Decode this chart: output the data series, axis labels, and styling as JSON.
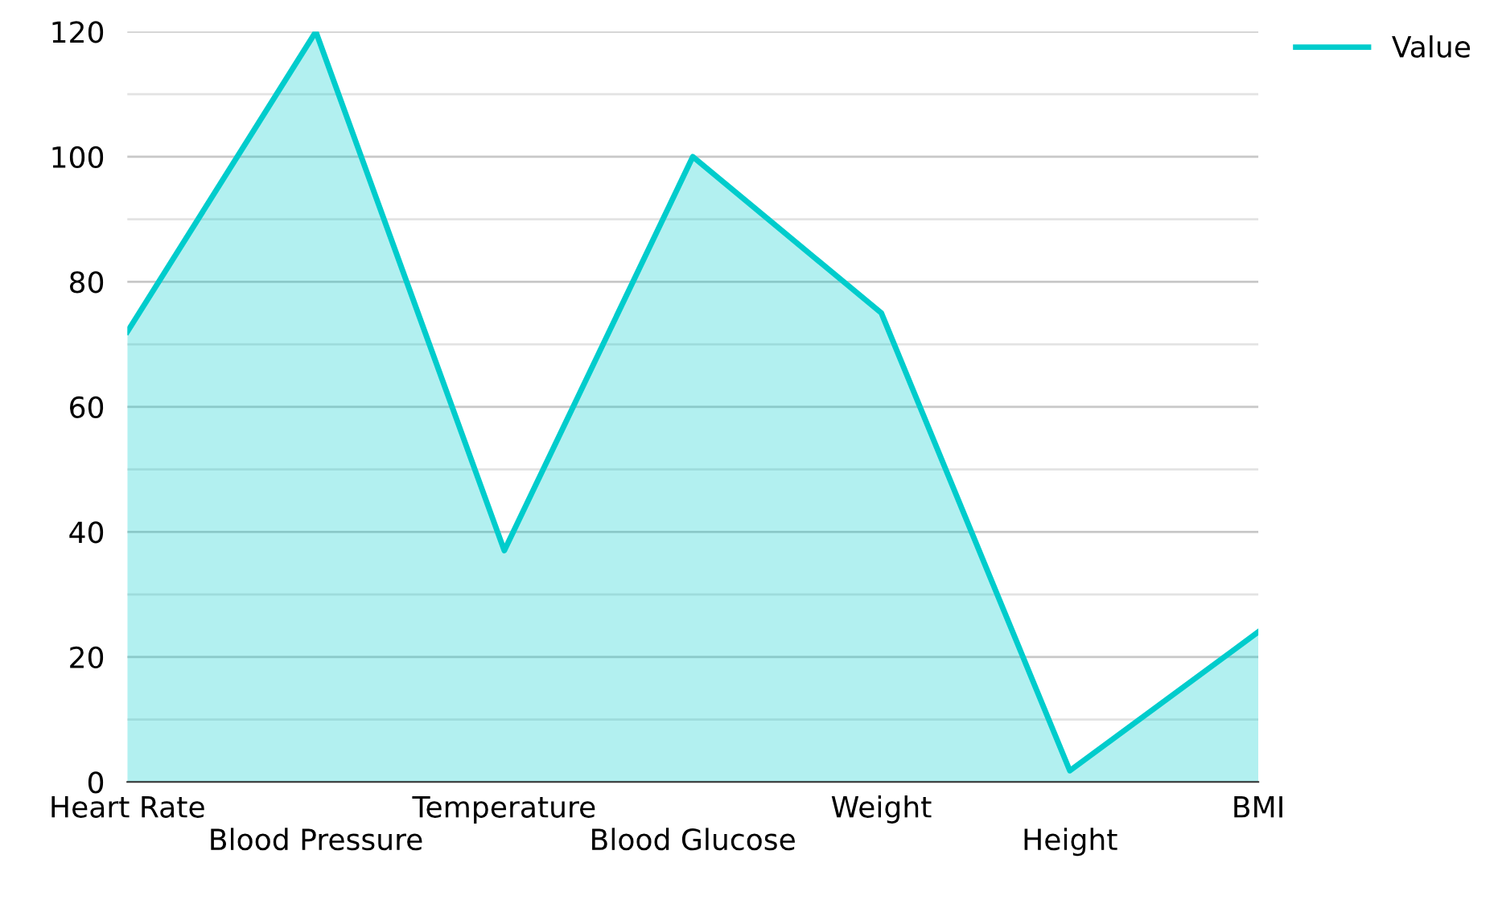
{
  "chart_data": {
    "type": "area",
    "categories": [
      "Heart Rate",
      "Blood Pressure",
      "Temperature",
      "Blood Glucose",
      "Weight",
      "Height",
      "BMI"
    ],
    "series": [
      {
        "name": "Value",
        "color": "#00cccc",
        "values": [
          72,
          120,
          37,
          100,
          75,
          1.8,
          24
        ]
      }
    ],
    "ylim": [
      0,
      120
    ],
    "yticks": [
      0,
      {
        "value": 10,
        "label": null
      },
      20,
      {
        "value": 30,
        "label": null
      },
      40,
      {
        "value": 50,
        "label": null
      },
      60,
      {
        "value": 70,
        "label": null
      },
      80,
      {
        "value": 90,
        "label": null
      },
      100,
      {
        "value": 110,
        "label": null
      },
      120
    ],
    "grid": "y",
    "legend": "top right"
  }
}
